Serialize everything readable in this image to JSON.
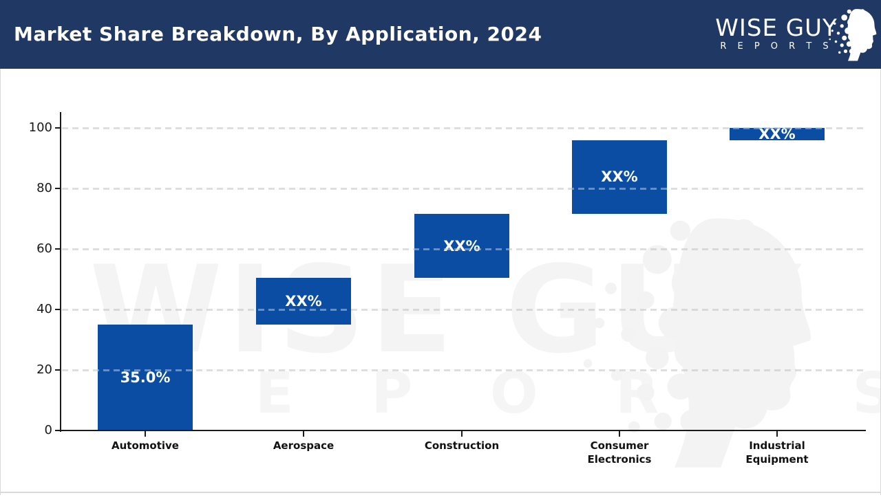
{
  "header": {
    "title": "Market Share Breakdown, By Application, 2024",
    "logo_line1": "WISE GUY",
    "logo_line2": "R E P O R T S"
  },
  "watermark": {
    "line1": "WISE GUY",
    "line2": "R E P O R T S"
  },
  "colors": {
    "header_bg": "#203864",
    "bar": "#0b4da2",
    "grid": "#d8d8d8",
    "axis": "#1a1a1a",
    "bar_label": "#ffffff",
    "watermark": "#f4f4f4"
  },
  "chart_data": {
    "type": "bar",
    "subtype": "waterfall",
    "title": "Market Share Breakdown, By Application, 2024",
    "categories": [
      "Automotive",
      "Aerospace",
      "Construction",
      "Consumer\nElectronics",
      "Industrial\nEquipment"
    ],
    "segments": [
      {
        "category": "Automotive",
        "start": 0,
        "end": 35,
        "label": "35.0%"
      },
      {
        "category": "Aerospace",
        "start": 35,
        "end": 50.5,
        "label": "XX%"
      },
      {
        "category": "Construction",
        "start": 50.5,
        "end": 71.5,
        "label": "XX%"
      },
      {
        "category": "Consumer Electronics",
        "start": 71.5,
        "end": 96,
        "label": "XX%"
      },
      {
        "category": "Industrial Equipment",
        "start": 96,
        "end": 100,
        "label": "XX%"
      }
    ],
    "ylim": [
      0,
      100
    ],
    "yticks": [
      0,
      20,
      40,
      60,
      80,
      100
    ],
    "xlabel": "",
    "ylabel": "",
    "grid": "dashed-horizontal",
    "legend": "none"
  }
}
